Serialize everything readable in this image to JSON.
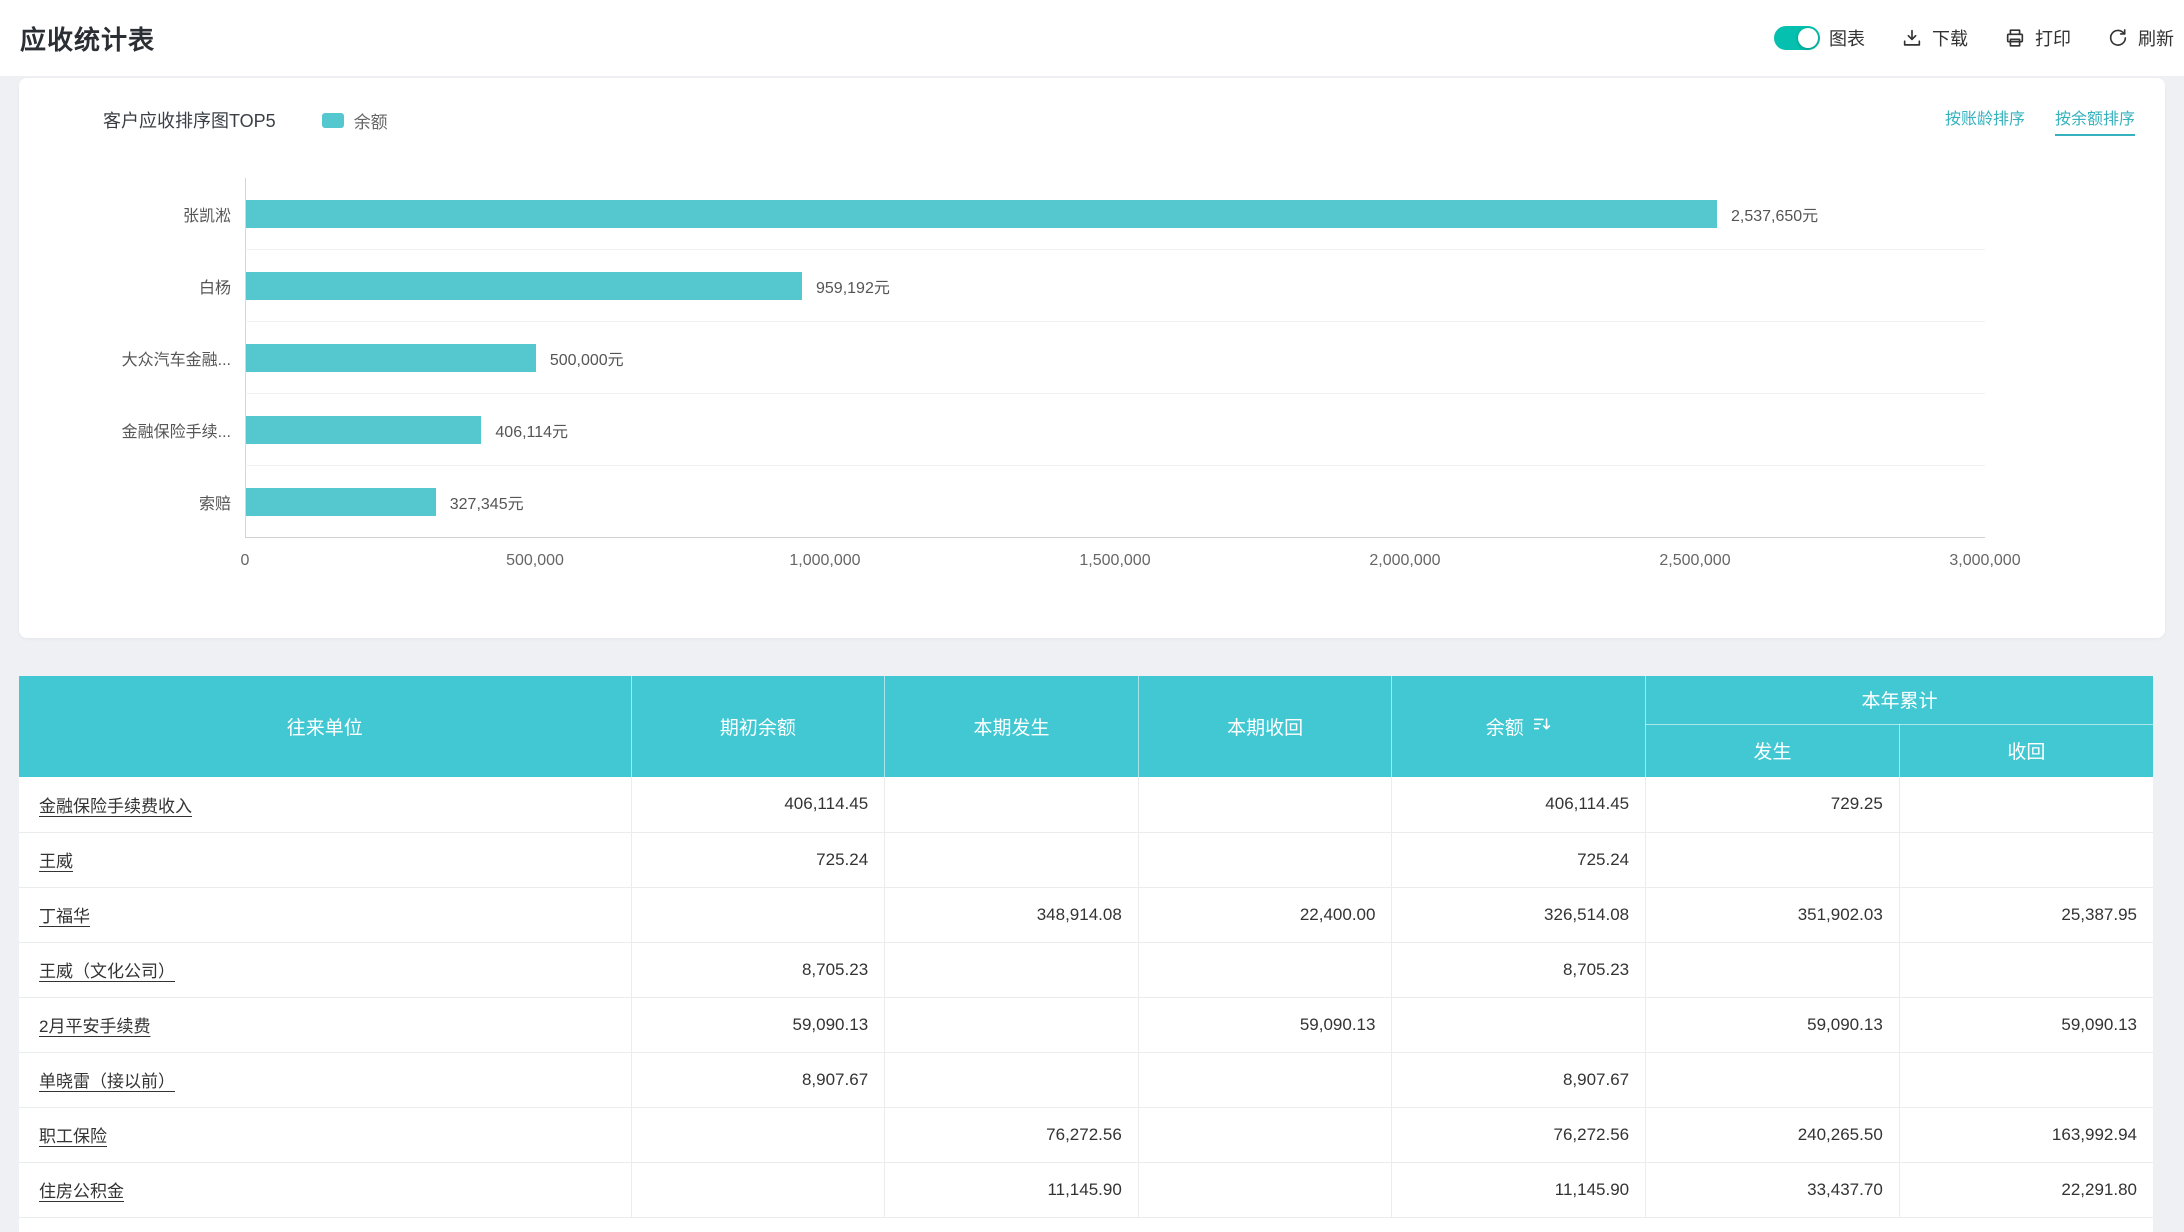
{
  "page": {
    "title": "应收统计表"
  },
  "toolbar": {
    "chart_toggle": {
      "label": "图表",
      "on": true
    },
    "download": "下载",
    "print": "打印",
    "refresh": "刷新"
  },
  "chart": {
    "title": "客户应收排序图TOP5",
    "legend_label": "余额",
    "sort_tabs": [
      {
        "label": "按账龄排序",
        "active": false
      },
      {
        "label": "按余额排序",
        "active": true
      }
    ]
  },
  "chart_data": {
    "type": "bar",
    "orientation": "horizontal",
    "title": "客户应收排序图TOP5",
    "legend": [
      "余额"
    ],
    "categories": [
      "张凯淞",
      "白杨",
      "大众汽车金融...",
      "金融保险手续...",
      "索赔"
    ],
    "values": [
      2537650,
      959192,
      500000,
      406114,
      327345
    ],
    "value_labels": [
      "2,537,650元",
      "959,192元",
      "500,000元",
      "406,114元",
      "327,345元"
    ],
    "xlim": [
      0,
      3000000
    ],
    "x_tick_labels": [
      "0",
      "500,000",
      "1,000,000",
      "1,500,000",
      "2,000,000",
      "2,500,000",
      "3,000,000"
    ],
    "bar_color": "#54c8ce",
    "grid": true,
    "legend_position": "top-left"
  },
  "table": {
    "headers": {
      "company": "往来单位",
      "opening_balance": "期初余额",
      "period_occurred": "本期发生",
      "period_received": "本期收回",
      "balance": "余额",
      "ytd_group": "本年累计",
      "ytd_occurred": "发生",
      "ytd_received": "收回"
    },
    "rows": [
      {
        "company": "金融保险手续费收入",
        "opening_balance": "406,114.45",
        "period_occurred": "",
        "period_received": "",
        "balance": "406,114.45",
        "ytd_occurred": "729.25",
        "ytd_received": ""
      },
      {
        "company": "王威",
        "opening_balance": "725.24",
        "period_occurred": "",
        "period_received": "",
        "balance": "725.24",
        "ytd_occurred": "",
        "ytd_received": ""
      },
      {
        "company": "丁福华",
        "opening_balance": "",
        "period_occurred": "348,914.08",
        "period_received": "22,400.00",
        "balance": "326,514.08",
        "ytd_occurred": "351,902.03",
        "ytd_received": "25,387.95"
      },
      {
        "company": "王威（文化公司）",
        "opening_balance": "8,705.23",
        "period_occurred": "",
        "period_received": "",
        "balance": "8,705.23",
        "ytd_occurred": "",
        "ytd_received": ""
      },
      {
        "company": "2月平安手续费",
        "opening_balance": "59,090.13",
        "period_occurred": "",
        "period_received": "59,090.13",
        "balance": "",
        "ytd_occurred": "59,090.13",
        "ytd_received": "59,090.13"
      },
      {
        "company": "单晓雷（接以前）",
        "opening_balance": "8,907.67",
        "period_occurred": "",
        "period_received": "",
        "balance": "8,907.67",
        "ytd_occurred": "",
        "ytd_received": ""
      },
      {
        "company": "职工保险",
        "opening_balance": "",
        "period_occurred": "76,272.56",
        "period_received": "",
        "balance": "76,272.56",
        "ytd_occurred": "240,265.50",
        "ytd_received": "163,992.94"
      },
      {
        "company": "住房公积金",
        "opening_balance": "",
        "period_occurred": "11,145.90",
        "period_received": "",
        "balance": "11,145.90",
        "ytd_occurred": "33,437.70",
        "ytd_received": "22,291.80"
      }
    ]
  },
  "colors": {
    "accent_teal": "#41c8d2",
    "bar_teal": "#54c8ce",
    "toggle_on": "#05c0ae",
    "header_text": "#ffffff",
    "page_background": "#eef0f3"
  }
}
